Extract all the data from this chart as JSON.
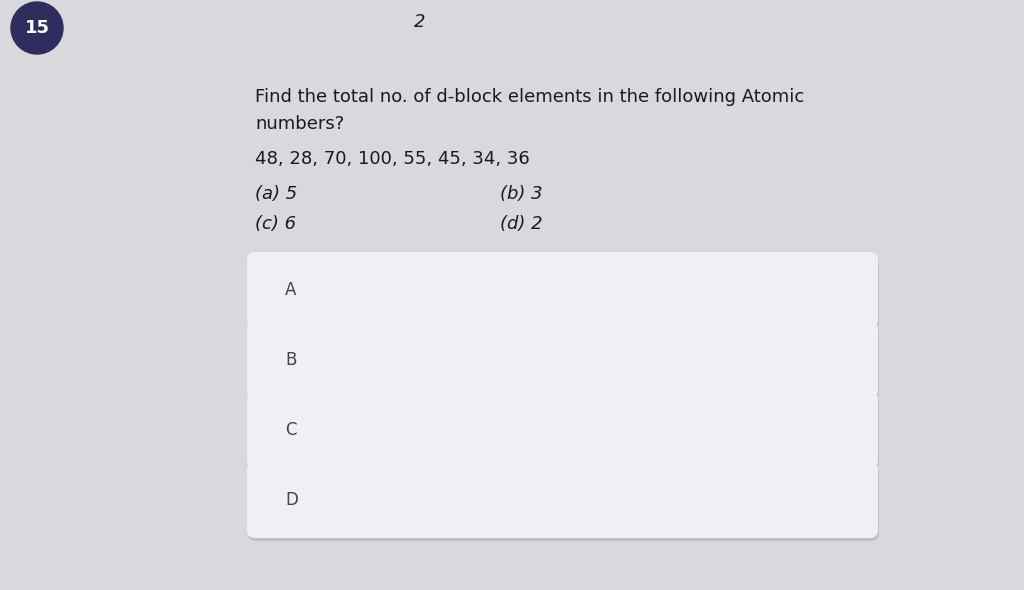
{
  "question_number": "15",
  "question_number_bg": "#2e2d5e",
  "question_text_line1": "Find the total no. of d-block elements in the following Atomic",
  "question_text_line2": "numbers?",
  "atomic_numbers": "48, 28, 70, 100, 55, 45, 34, 36",
  "options": [
    {
      "label": "(a)",
      "value": "5",
      "col": 0
    },
    {
      "label": "(b)",
      "value": "3",
      "col": 1
    },
    {
      "label": "(c)",
      "value": "6",
      "col": 0
    },
    {
      "label": "(d)",
      "value": "2",
      "col": 1
    }
  ],
  "answer_buttons": [
    "A",
    "B",
    "C",
    "D"
  ],
  "background_color": "#d8d8dd",
  "button_color": "#f0f0f4",
  "button_shadow_color": "#c0c0c8",
  "text_color": "#1a1a1a",
  "annotation_text": "2",
  "fig_width": 10.24,
  "fig_height": 5.9
}
